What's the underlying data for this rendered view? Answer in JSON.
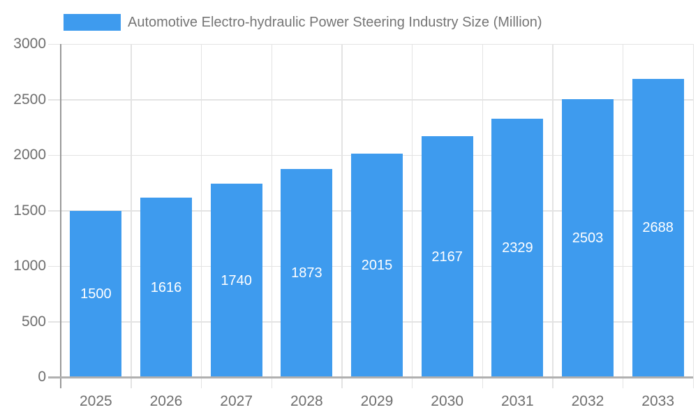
{
  "legend": {
    "label": "Automotive Electro-hydraulic Power Steering Industry Size (Million)"
  },
  "chart_data": {
    "type": "bar",
    "title": "Automotive Electro-hydraulic Power Steering Industry Size (Million)",
    "categories": [
      "2025",
      "2026",
      "2027",
      "2028",
      "2029",
      "2030",
      "2031",
      "2032",
      "2033"
    ],
    "values": [
      1500,
      1616,
      1740,
      1873,
      2015,
      2167,
      2329,
      2503,
      2688
    ],
    "xlabel": "",
    "ylabel": "",
    "ylim": [
      0,
      3000
    ],
    "y_ticks": [
      0,
      500,
      1000,
      1500,
      2000,
      2500,
      3000
    ],
    "grid": true,
    "legend_position": "top-left",
    "value_labels": "inside-middle",
    "colors": {
      "bar": "#3E9BEE",
      "value_label": "#ffffff",
      "axis_text": "#6e6e6e",
      "legend_text": "#757575",
      "gridline": "#e3e3e3",
      "y_axis_line": "#999999",
      "x_axis_line": "#b0b0b0",
      "background": "#ffffff"
    }
  }
}
